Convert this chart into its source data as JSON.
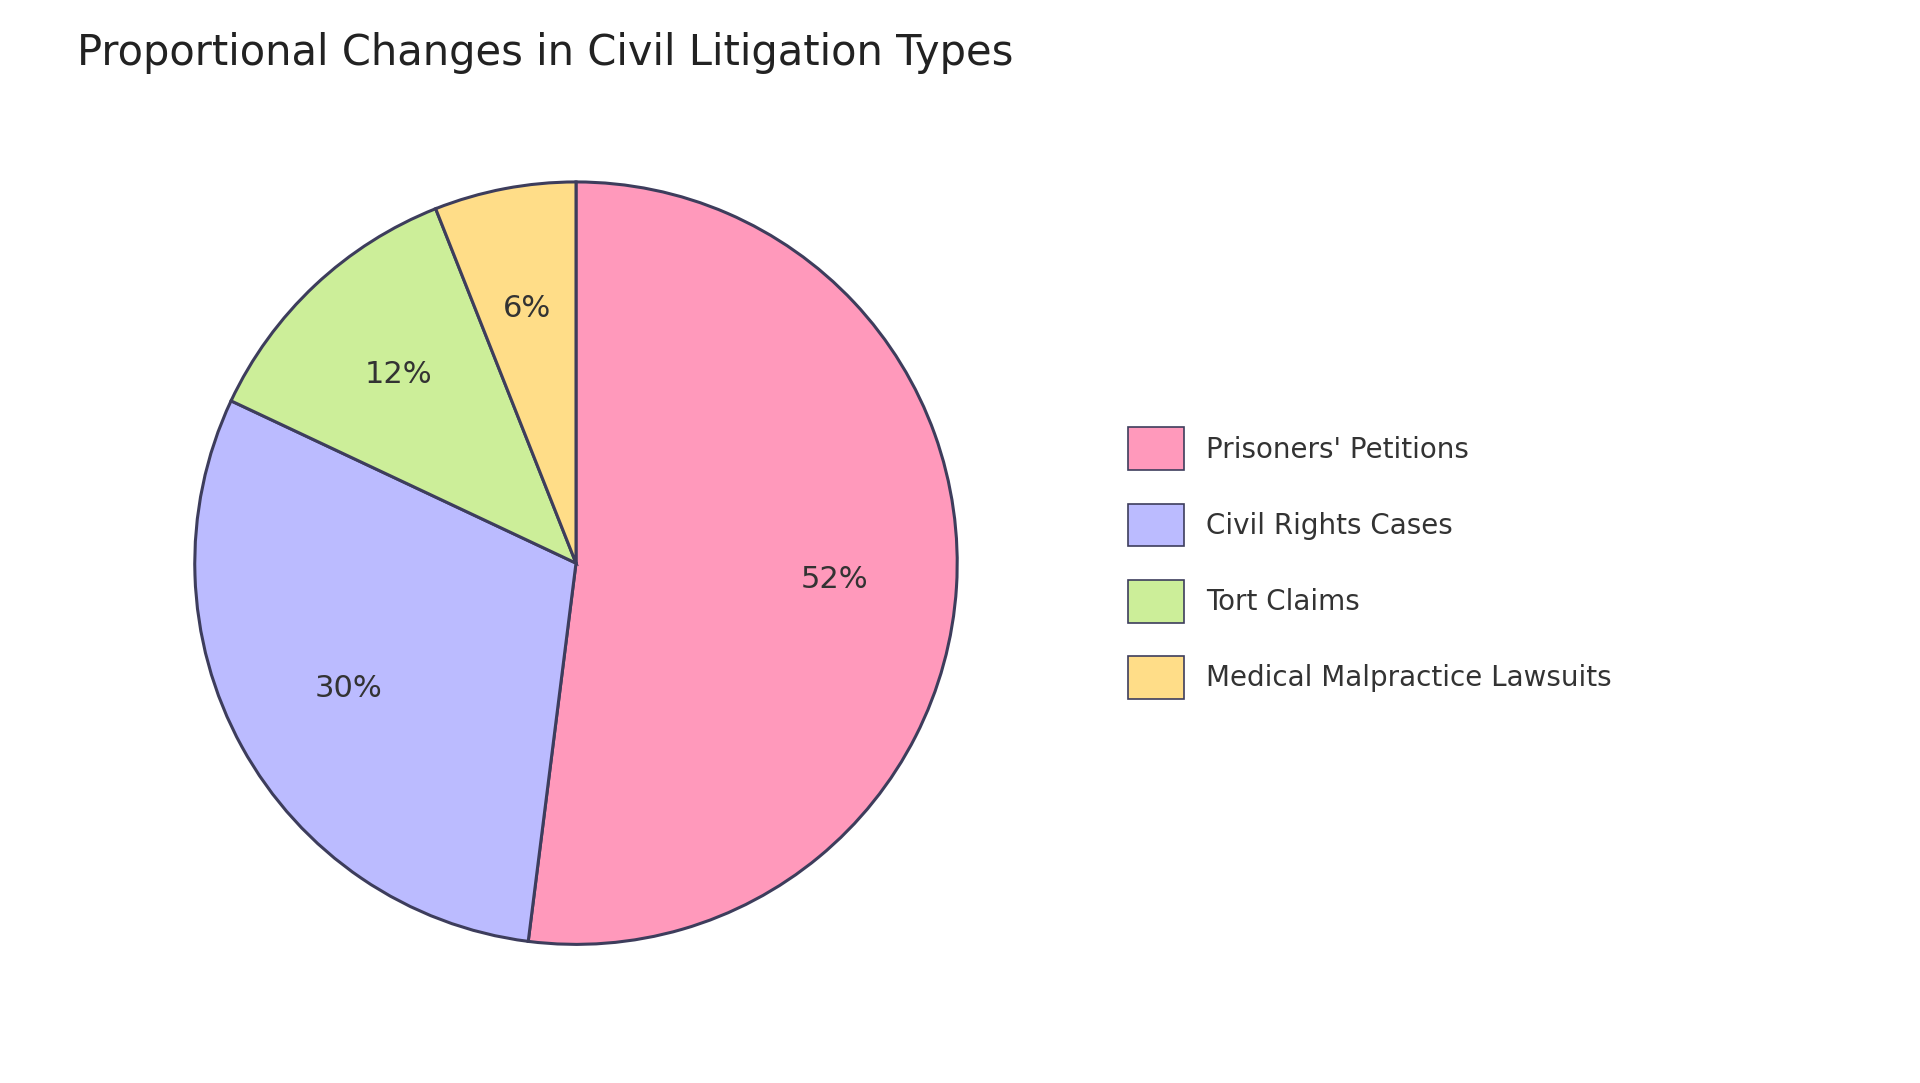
{
  "title": "Proportional Changes in Civil Litigation Types",
  "slices": [
    {
      "label": "Prisoners' Petitions",
      "value": 52,
      "color": "#FF99BB"
    },
    {
      "label": "Civil Rights Cases",
      "value": 30,
      "color": "#BBBBFF"
    },
    {
      "label": "Tort Claims",
      "value": 12,
      "color": "#CCEE99"
    },
    {
      "label": "Medical Malpractice Lawsuits",
      "value": 6,
      "color": "#FFDD88"
    }
  ],
  "startangle": 90,
  "title_fontsize": 30,
  "label_fontsize": 22,
  "legend_fontsize": 20,
  "edge_color": "#3d3d5c",
  "edge_linewidth": 2.2,
  "background_color": "#FFFFFF",
  "counterclock": false,
  "pct_distance": 0.68
}
